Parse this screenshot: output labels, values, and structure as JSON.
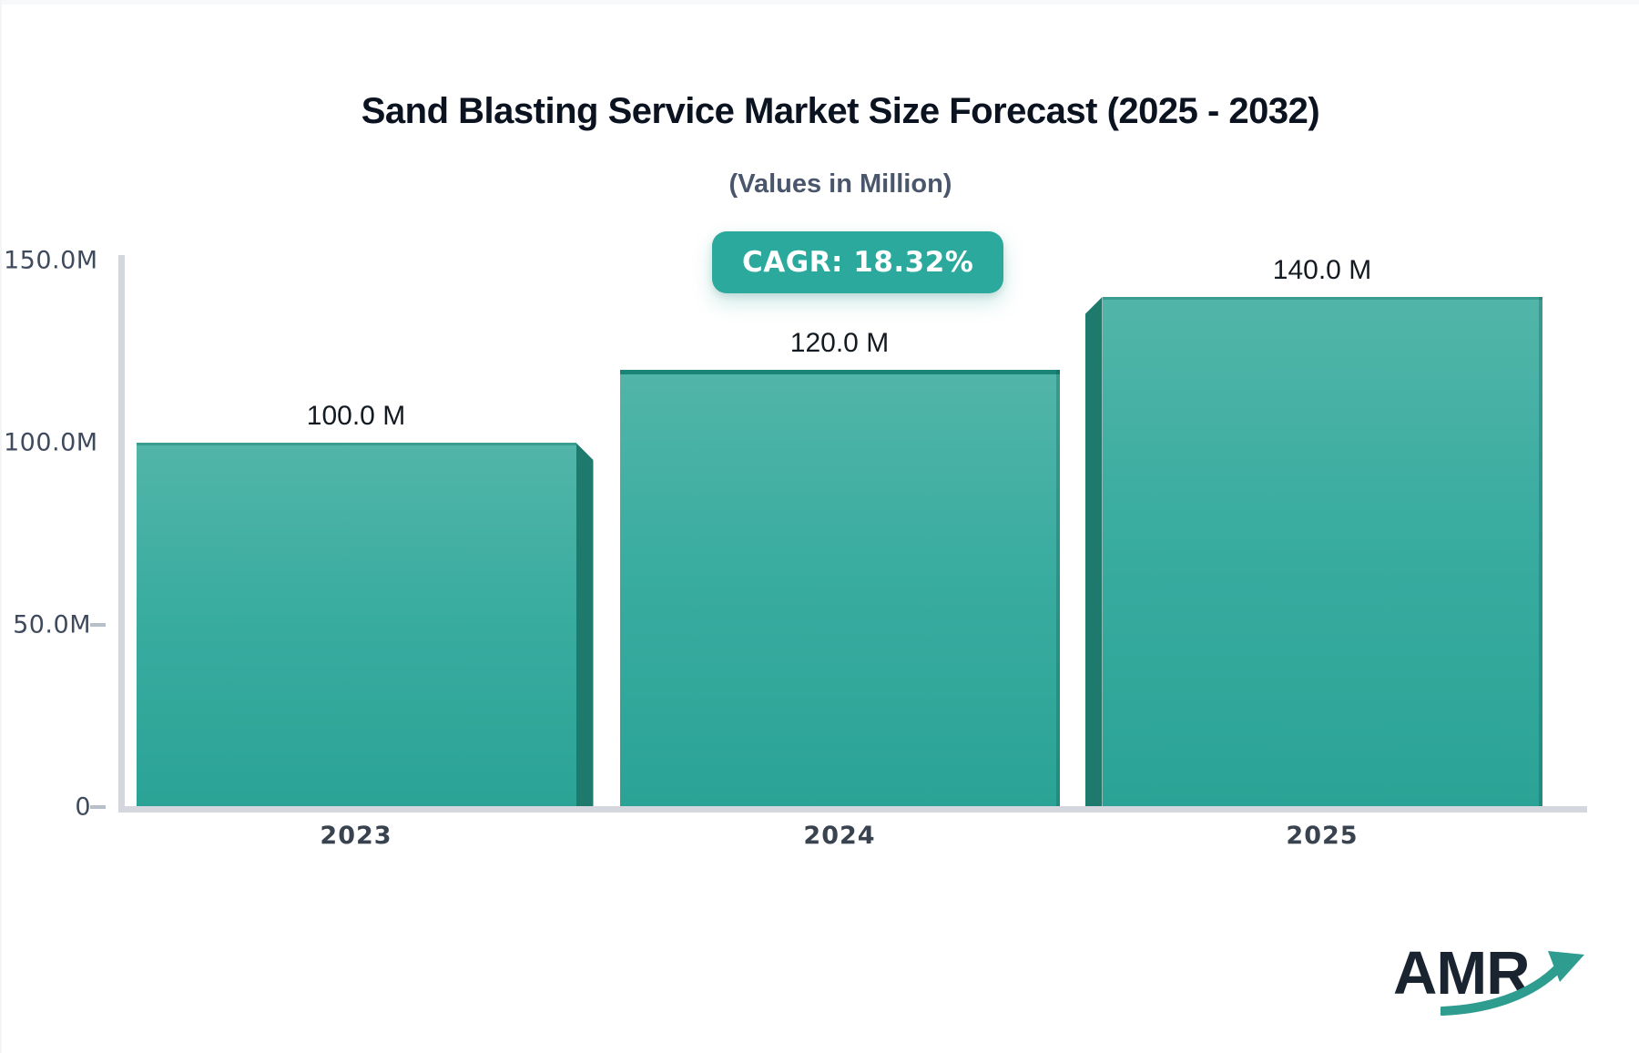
{
  "header": {
    "title": "Sand Blasting Service Market Size Forecast (2025 - 2032)",
    "subtitle": "(Values in Million)"
  },
  "badge": {
    "label": "CAGR: 18.32%",
    "bg_color": "#2aa99c",
    "text_color": "#ffffff"
  },
  "chart_data": {
    "type": "bar",
    "title": "Sand Blasting Service Market Size Forecast (2025 - 2032)",
    "subtitle": "(Values in Million)",
    "categories": [
      "2023",
      "2024",
      "2025"
    ],
    "values": [
      100.0,
      120.0,
      140.0
    ],
    "value_labels": [
      "100.0 M",
      "120.0 M",
      "140.0 M"
    ],
    "unit": "Million",
    "ylim": [
      0,
      150
    ],
    "yticks": [
      {
        "value": 150,
        "label": "150.0M",
        "tick": false
      },
      {
        "value": 100,
        "label": "100.0M",
        "tick": false
      },
      {
        "value": 50,
        "label": "50.0M",
        "tick": true
      },
      {
        "value": 0,
        "label": "0",
        "tick": true
      }
    ],
    "grid": false,
    "legend": false,
    "cagr_annotation": "CAGR: 18.32%",
    "colors": {
      "bar_top": "#52b5a9",
      "bar_bottom": "#2aa396",
      "bar_side": "#1f7a6e",
      "axis": "#d4d7de"
    }
  },
  "logo": {
    "text": "AMR",
    "text_color": "#1a2430",
    "arrow_color": "#2f9c90"
  }
}
